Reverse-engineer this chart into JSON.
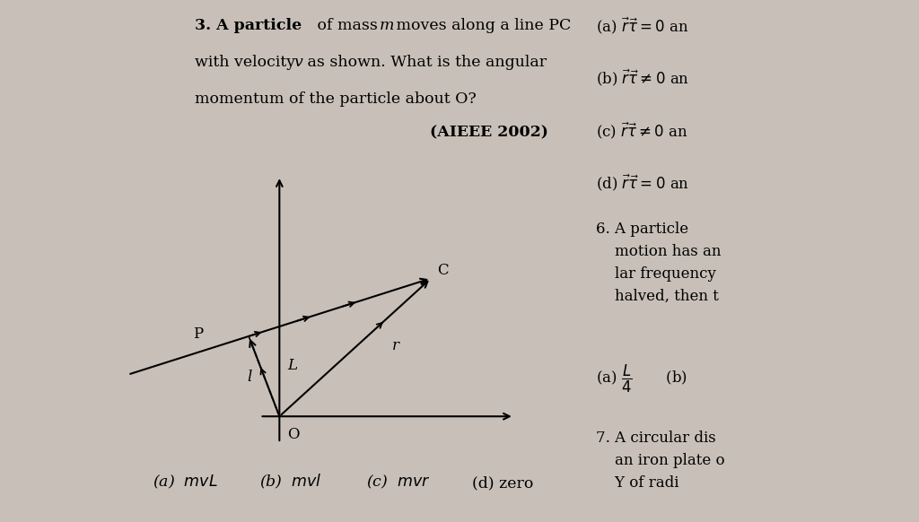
{
  "bg_left_color": "#b8a898",
  "bg_right_color": "#c8c0b8",
  "paper_color": "#e8e2dc",
  "paper_color2": "#ddd8d0",
  "title_line1": "3. A particle of mass ",
  "title_line1b": "m",
  "title_line1c": " moves along a line PC",
  "title_line2": "with velocity ",
  "title_line2b": "v",
  "title_line2c": " as shown. What is the angular",
  "title_line3": "momentum of the particle about O?",
  "subtitle": "(AIEEE 2002)",
  "ans_a": "(a)  mvL",
  "ans_b": "(b)  mvl",
  "ans_c": "(c)  mvr",
  "ans_d": "(d) zero",
  "r5a": "(a) $\\vec{r}\\vec{\\tau} = 0$ an",
  "r5b": "(b) $\\vec{r}\\vec{\\tau} \\neq 0$ an",
  "r5c": "(c) $\\vec{r}\\vec{\\tau} \\neq 0$ an",
  "r5d": "(d) $\\vec{r}\\vec{\\tau} = 0$ an",
  "r6_text": "6.  A particle\n     motion has an\n     lar frequency\n     halved, then t",
  "r6_ans": "(a) $\\dfrac{L}{4}$        (b)",
  "r7_text": "7.  A circular dis\n     an iron plate o\n     Y of radi"
}
